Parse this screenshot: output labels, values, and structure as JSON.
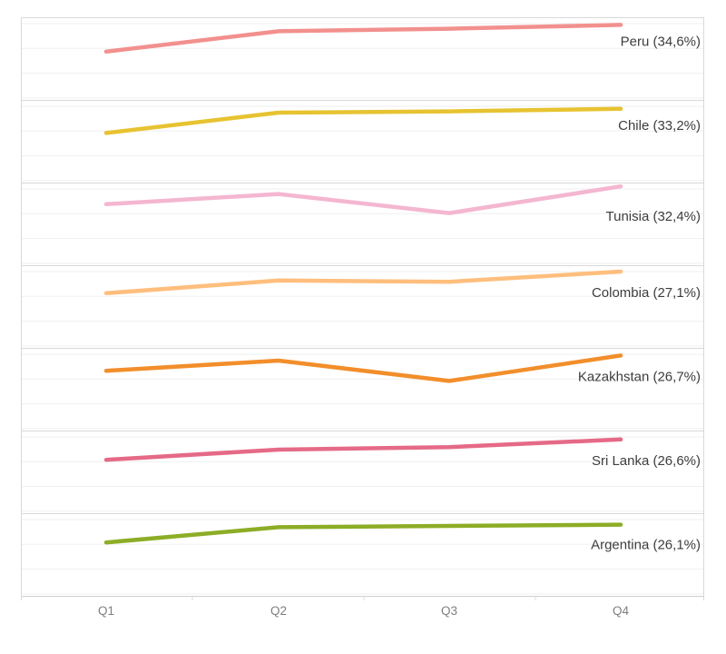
{
  "chart_data": {
    "type": "line",
    "layout_style": "small_multiples_rows",
    "title": "",
    "xlabel": "",
    "ylabel": "",
    "grid": true,
    "legend": "inline-right-labels",
    "categories": [
      "Q1",
      "Q2",
      "Q3",
      "Q4"
    ],
    "x_tick_labels": [
      "Q1",
      "Q2",
      "Q3",
      "Q4"
    ],
    "series": [
      {
        "name": "Peru",
        "label": "Peru (34,6%)",
        "value_pct": 34.6,
        "values": [
          32.5,
          34.1,
          34.3,
          34.6
        ],
        "ylim": [
          28.7,
          35.2
        ],
        "color": "#f2908e"
      },
      {
        "name": "Chile",
        "label": "Chile (33,2%)",
        "value_pct": 33.2,
        "values": [
          31.3,
          32.9,
          33.0,
          33.2
        ],
        "ylim": [
          27.4,
          33.9
        ],
        "color": "#e7c331"
      },
      {
        "name": "Tunisia",
        "label": "Tunisia (32,4%)",
        "value_pct": 32.4,
        "values": [
          31.0,
          31.8,
          30.3,
          32.4
        ],
        "ylim": [
          26.2,
          32.7
        ],
        "color": "#f4b6d0"
      },
      {
        "name": "Colombia",
        "label": "Colombia (27,1%)",
        "value_pct": 27.1,
        "values": [
          25.4,
          26.4,
          26.3,
          27.1
        ],
        "ylim": [
          21.1,
          27.6
        ],
        "color": "#ffbe7d"
      },
      {
        "name": "Kazakhstan",
        "label": "Kazakhstan (26,7%)",
        "value_pct": 26.7,
        "values": [
          25.5,
          26.3,
          24.7,
          26.7
        ],
        "ylim": [
          20.8,
          27.3
        ],
        "color": "#f28e2b"
      },
      {
        "name": "Sri Lanka",
        "label": "Sri Lanka (26,6%)",
        "value_pct": 26.6,
        "values": [
          25.0,
          25.8,
          26.0,
          26.6
        ],
        "ylim": [
          20.8,
          27.3
        ],
        "color": "#e56a87"
      },
      {
        "name": "Argentina",
        "label": "Argentina (26,1%)",
        "value_pct": 26.1,
        "values": [
          24.7,
          25.9,
          26.0,
          26.1
        ],
        "ylim": [
          20.5,
          27.0
        ],
        "color": "#8cad26"
      }
    ]
  },
  "colors": {
    "background": "#ffffff",
    "panel_border": "#d9d9d9",
    "gridline": "#efefef",
    "axis_line": "#cfcfcf",
    "tick_mark": "#d9d9d9",
    "series_label_text": "#3d3d3d",
    "axis_label_text": "#7f7f7f"
  }
}
